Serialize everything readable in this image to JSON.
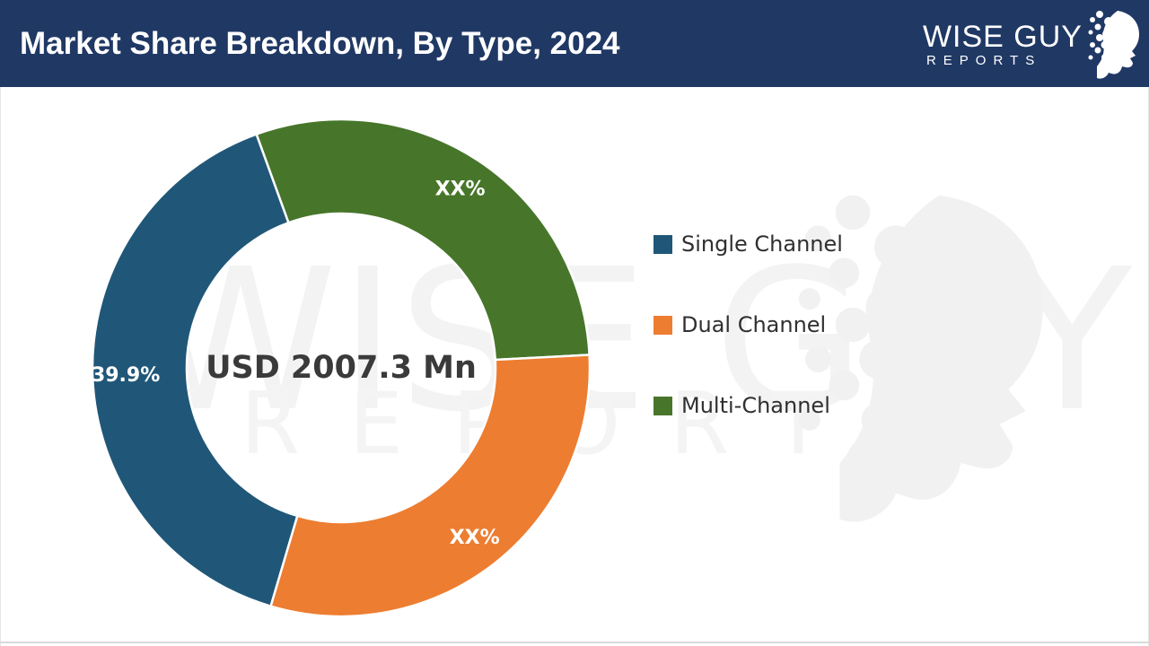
{
  "header": {
    "title": "Market Share Breakdown, By Type, 2024",
    "bg_color": "#203864",
    "logo_line1": "WISE GUY",
    "logo_line2": "REPORTS"
  },
  "chart_data": {
    "type": "pie",
    "donut": true,
    "title": "Market Share Breakdown, By Type, 2024",
    "center_label": "USD 2007.3 Mn",
    "legend_position": "right",
    "start_angle_deg": 3,
    "slices": [
      {
        "label": "Single Channel",
        "display_pct": "39.9%",
        "value_pct": 39.9,
        "color": "#205778"
      },
      {
        "label": "Dual Channel",
        "display_pct": "XX%",
        "value_pct": 30.4,
        "color": "#ED7D31"
      },
      {
        "label": "Multi-Channel",
        "display_pct": "XX%",
        "value_pct": 29.7,
        "color": "#47762B"
      }
    ]
  },
  "legend": [
    {
      "label": "Single Channel",
      "color": "#205778"
    },
    {
      "label": "Dual Channel",
      "color": "#ED7D31"
    },
    {
      "label": "Multi-Channel",
      "color": "#47762B"
    }
  ],
  "watermark": {
    "line1": "WISE GUY",
    "line2": "REPORTS"
  }
}
